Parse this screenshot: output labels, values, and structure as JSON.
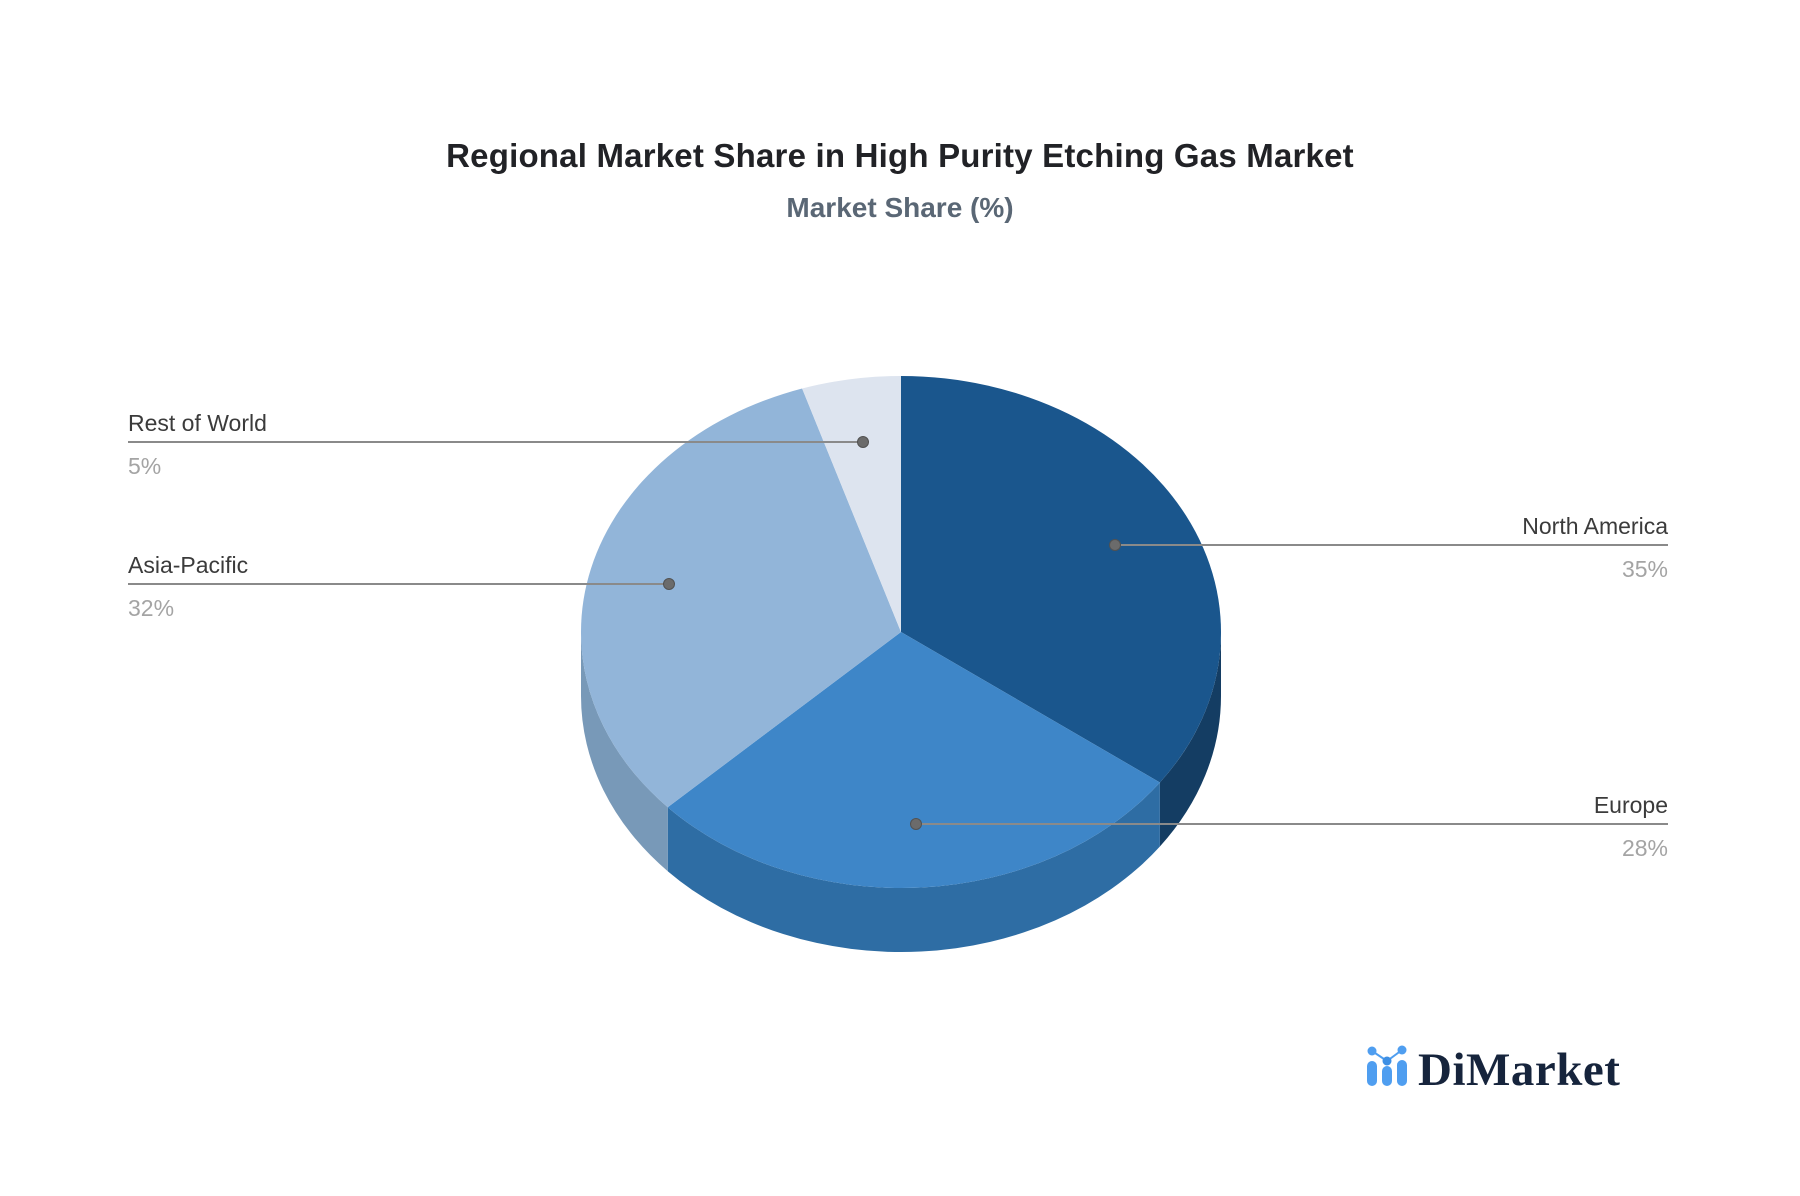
{
  "header": {
    "title": "Regional Market Share in High Purity Etching Gas Market",
    "subtitle": "Market Share (%)"
  },
  "chart_data": {
    "type": "pie",
    "style": "3d",
    "title": "Regional Market Share in High Purity Etching Gas Market",
    "unit": "%",
    "start_angle_deg": 0,
    "direction": "clockwise",
    "legend_position": "leader-labels",
    "slices": [
      {
        "label": "North America",
        "value": 35,
        "display_value": "35%",
        "color": "#1a568d",
        "side_color": "#143d63"
      },
      {
        "label": "Europe",
        "value": 28,
        "display_value": "28%",
        "color": "#3e86c8",
        "side_color": "#2e6da4"
      },
      {
        "label": "Asia-Pacific",
        "value": 32,
        "display_value": "32%",
        "color": "#92b5d9",
        "side_color": "#7899b8"
      },
      {
        "label": "Rest of World",
        "value": 5,
        "display_value": "5%",
        "color": "#dde4ef",
        "side_color": "#c5cfdd"
      }
    ],
    "label_text_color": "#3b3b3b",
    "pct_text_color": "#a4a4a4",
    "leader_line_color": "#8a8a8a"
  },
  "logo": {
    "text": "DiMarket",
    "icon": "bar-chart-logo-icon",
    "text_color": "#16243c",
    "icon_color": "#4f9ef0",
    "icon_mid_dot_color": "#3d8fe4"
  }
}
